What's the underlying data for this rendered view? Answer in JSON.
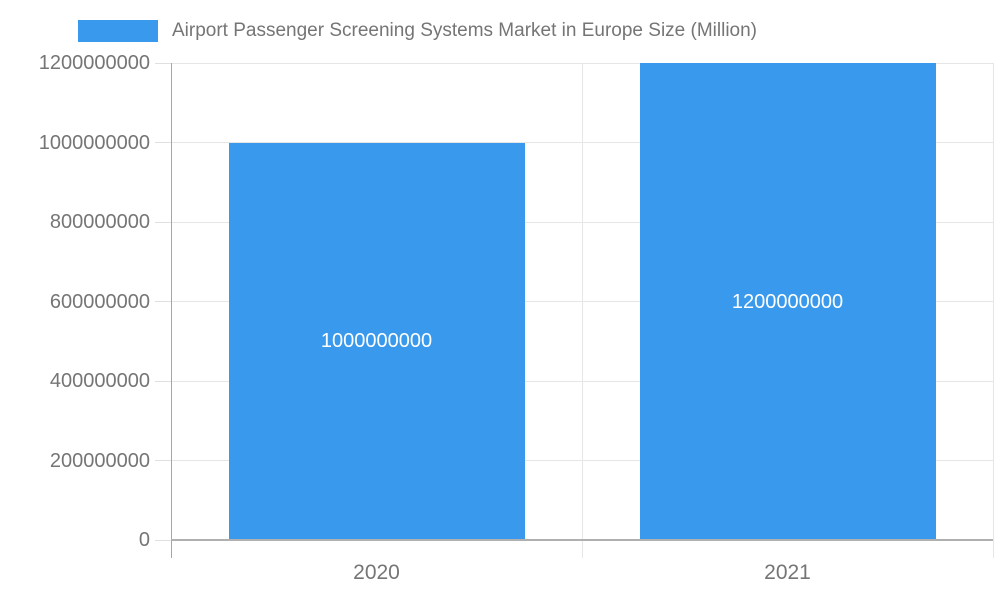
{
  "chart_data": {
    "type": "bar",
    "title": "Airport Passenger Screening Systems Market in Europe Size (Million)",
    "categories": [
      "2020",
      "2021"
    ],
    "values": [
      1000000000,
      1200000000
    ],
    "bar_labels": [
      "1000000000",
      "1200000000"
    ],
    "xlabel": "",
    "ylabel": "",
    "ylim": [
      0,
      1200000000
    ],
    "yticks": [
      0,
      200000000,
      400000000,
      600000000,
      800000000,
      1000000000,
      1200000000
    ],
    "ytick_labels": [
      "0",
      "200000000",
      "400000000",
      "600000000",
      "800000000",
      "1000000000",
      "1200000000"
    ],
    "grid": true,
    "legend_position": "top-left"
  },
  "colors": {
    "bar": "#3999EC",
    "bar_label_text": "#ffffff",
    "axis_text": "#757575",
    "gridline": "#e6e6e6",
    "tick_mark": "#e0e0e0",
    "y_axis_line": "#a6a6a6",
    "baseline": "#b0b0b0",
    "background": "#ffffff"
  }
}
